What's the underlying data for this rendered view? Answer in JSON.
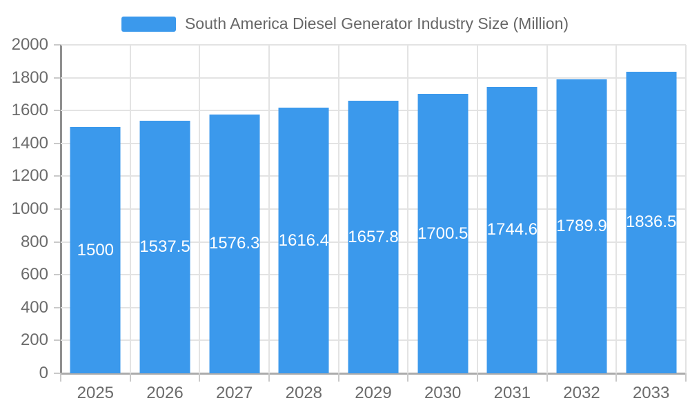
{
  "chart_data": {
    "type": "bar",
    "title": "South America Diesel Generator Industry Size (Million)",
    "categories": [
      "2025",
      "2026",
      "2027",
      "2028",
      "2029",
      "2030",
      "2031",
      "2032",
      "2033"
    ],
    "values": [
      1500,
      1537.5,
      1576.3,
      1616.4,
      1657.8,
      1700.5,
      1744.6,
      1789.9,
      1836.5
    ],
    "bar_labels": [
      "1500",
      "1537.5",
      "1576.3",
      "1616.4",
      "1657.8",
      "1700.5",
      "1744.6",
      "1789.9",
      "1836.5"
    ],
    "xlabel": "",
    "ylabel": "",
    "ylim": [
      0,
      2000
    ],
    "yticks": [
      0,
      200,
      400,
      600,
      800,
      1000,
      1200,
      1400,
      1600,
      1800,
      2000
    ],
    "grid": true,
    "legend_position": "top"
  },
  "colors": {
    "bar": "#3B99EC",
    "bar_label": "#FFFFFF",
    "axis_text": "#6B6B6B",
    "title_text": "#666666",
    "gridline": "#E3E3E3",
    "y_axis_line": "#8F8F8F",
    "x_axis_line": "#ABABAB",
    "tick": "#C9C9C9",
    "background": "#FFFFFF"
  }
}
